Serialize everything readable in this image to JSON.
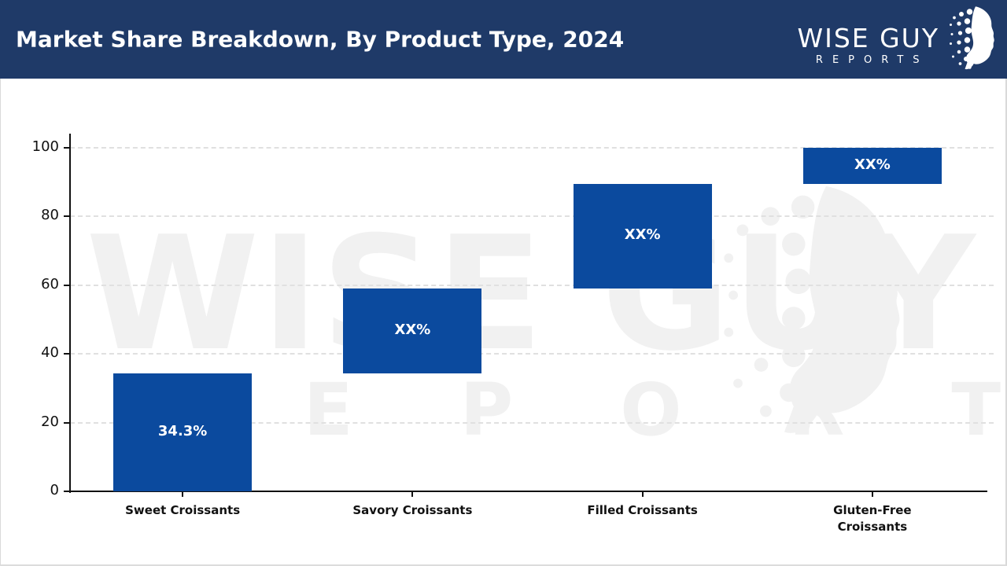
{
  "header": {
    "title": "Market Share Breakdown, By Product Type, 2024",
    "bg_color": "#1f3a68",
    "logo": {
      "line1": "WISE GUY",
      "line2": "REPORTS"
    }
  },
  "watermark": {
    "line1": "WISE GUY",
    "line2": "R E P O R T S"
  },
  "chart_data": {
    "type": "bar",
    "subtype": "waterfall",
    "title": "Market Share Breakdown, By Product Type, 2024",
    "categories": [
      "Sweet Croissants",
      "Savory Croissants",
      "Filled Croissants",
      "Gluten-Free Croissants"
    ],
    "segments": [
      {
        "category": "Sweet Croissants",
        "base": 0,
        "value": 34.3,
        "label": "34.3%"
      },
      {
        "category": "Savory Croissants",
        "base": 34.3,
        "value": 24.7,
        "label": "XX%"
      },
      {
        "category": "Filled Croissants",
        "base": 59.0,
        "value": 30.4,
        "label": "XX%"
      },
      {
        "category": "Gluten-Free Croissants",
        "base": 89.4,
        "value": 10.6,
        "label": "XX%"
      }
    ],
    "xlabel": "",
    "ylabel": "",
    "ylim": [
      0,
      104
    ],
    "yticks": [
      0,
      20,
      40,
      60,
      80,
      100
    ],
    "bar_color": "#0b4a9e",
    "axis_color": "#111111",
    "gridline_color": "#e0e0e0",
    "grid": "horizontal-dashed",
    "value_label_color": "#ffffff",
    "legend": "none"
  }
}
